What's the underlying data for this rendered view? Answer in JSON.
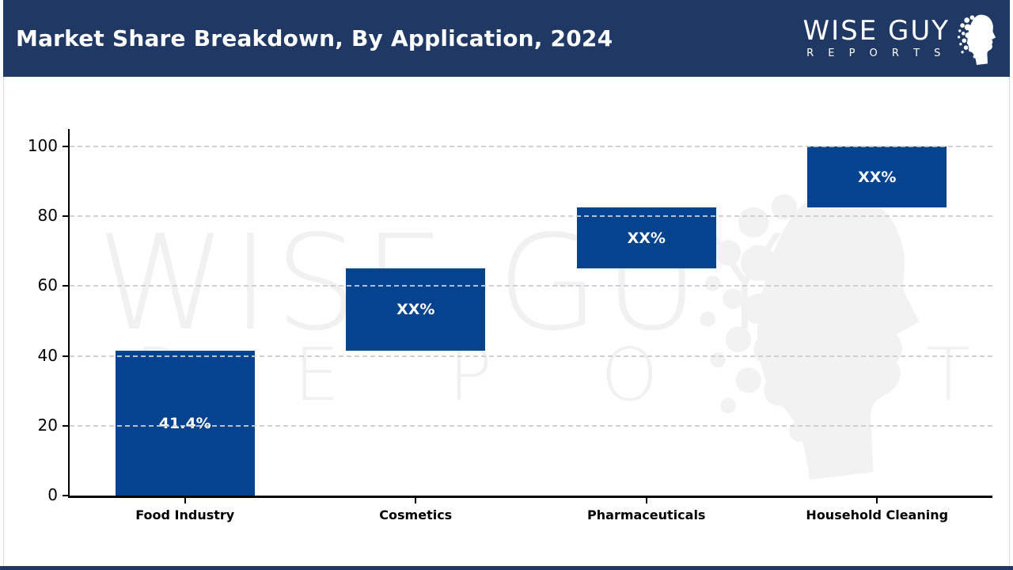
{
  "page": {
    "background": "#ffffff",
    "frame_border_color": "#d9d9d9",
    "footer_color": "#1f3864"
  },
  "header": {
    "background": "#1f3864",
    "title": "Market Share Breakdown, By Application, 2024",
    "title_color": "#ffffff",
    "logo": {
      "line1": "WISE GUY",
      "line2": "R E P O R T S"
    }
  },
  "watermark": {
    "line1": "WISE GUY",
    "line2": "R E P O R T S"
  },
  "chart_data": {
    "type": "bar",
    "subtype": "waterfall",
    "title": "Market Share Breakdown, By Application, 2024",
    "categories": [
      "Food Industry",
      "Cosmetics",
      "Pharmaceuticals",
      "Household Cleaning"
    ],
    "segments": [
      {
        "category": "Food Industry",
        "start": 0,
        "end": 41.4,
        "label": "41.4%"
      },
      {
        "category": "Cosmetics",
        "start": 41.4,
        "end": 65,
        "label": "XX%"
      },
      {
        "category": "Pharmaceuticals",
        "start": 65,
        "end": 82.5,
        "label": "XX%"
      },
      {
        "category": "Household Cleaning",
        "start": 82.5,
        "end": 100,
        "label": "XX%"
      }
    ],
    "ylim": [
      0,
      100
    ],
    "yticks": [
      0,
      20,
      40,
      60,
      80,
      100
    ],
    "xlabel": "",
    "ylabel": "",
    "bar_color": "#05438f",
    "bar_label_color": "#ffffff",
    "grid": {
      "show": true,
      "style": "dashed",
      "color": "#cdcdcd"
    },
    "legend": null
  }
}
